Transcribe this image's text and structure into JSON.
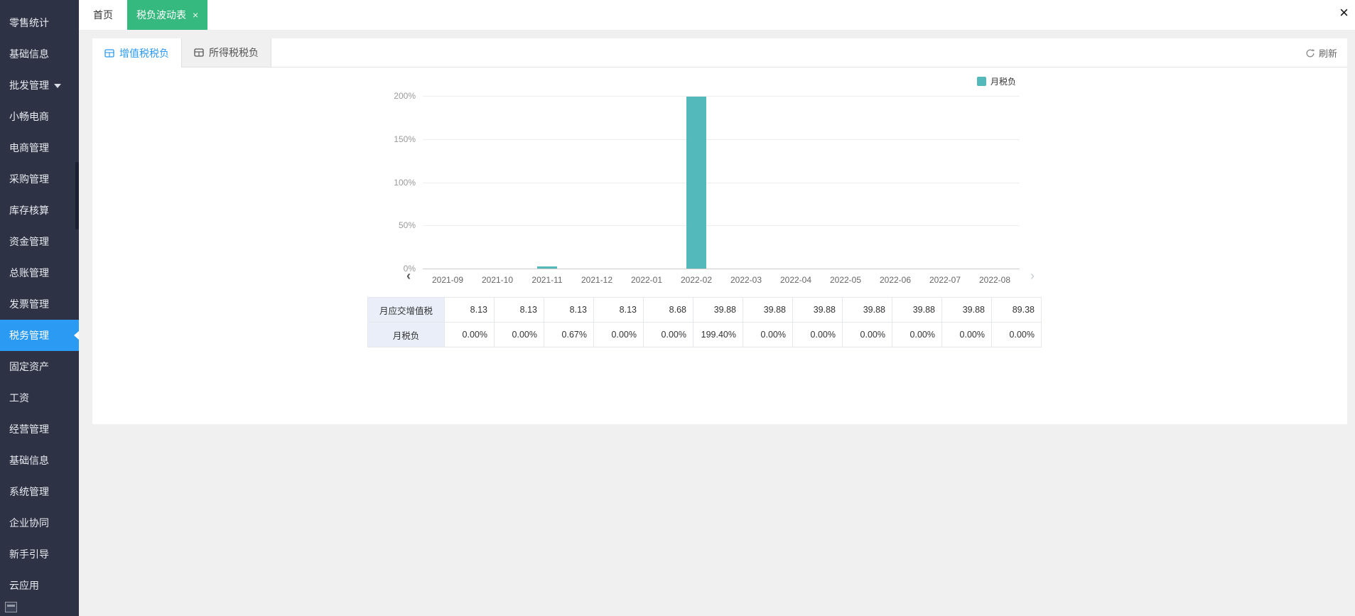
{
  "app": {
    "close_label": "×"
  },
  "colors": {
    "sidebar_bg": "#2d3344",
    "accent_blue": "#2b9af3",
    "tab_active_green": "#36b97e",
    "table_label_bg": "#e9eef8"
  },
  "sidebar": {
    "items": [
      {
        "label": "零售统计"
      },
      {
        "label": "基础信息"
      },
      {
        "label": "批发管理",
        "has_dropdown": true
      },
      {
        "label": "小畅电商"
      },
      {
        "label": "电商管理"
      },
      {
        "label": "采购管理"
      },
      {
        "label": "库存核算"
      },
      {
        "label": "资金管理"
      },
      {
        "label": "总账管理"
      },
      {
        "label": "发票管理"
      },
      {
        "label": "税务管理",
        "active": true
      },
      {
        "label": "固定资产"
      },
      {
        "label": "工资"
      },
      {
        "label": "经营管理"
      },
      {
        "label": "基础信息"
      },
      {
        "label": "系统管理"
      },
      {
        "label": "企业协同"
      },
      {
        "label": "新手引导"
      },
      {
        "label": "云应用"
      }
    ]
  },
  "tabbar": {
    "home_tab": "首页",
    "active_tab": "税负波动表",
    "close": "×"
  },
  "content": {
    "tabs": [
      {
        "label": "增值税税负",
        "active": true
      },
      {
        "label": "所得税税负",
        "active": false
      }
    ],
    "refresh_label": "刷新"
  },
  "chart_data": {
    "type": "bar",
    "title": "",
    "xlabel": "",
    "ylabel": "",
    "categories": [
      "2021-09",
      "2021-10",
      "2021-11",
      "2021-12",
      "2022-01",
      "2022-02",
      "2022-03",
      "2022-04",
      "2022-05",
      "2022-06",
      "2022-07",
      "2022-08"
    ],
    "series": [
      {
        "name": "月税负",
        "values": [
          0.0,
          0.0,
          0.67,
          0.0,
          0.0,
          199.4,
          0.0,
          0.0,
          0.0,
          0.0,
          0.0,
          0.0
        ]
      }
    ],
    "y_ticks": [
      "0%",
      "50%",
      "100%",
      "150%",
      "200%"
    ],
    "ylim": [
      0,
      200
    ],
    "bar_color": "#54b9ba",
    "legend": [
      "月税负"
    ],
    "legend_position": "top-right",
    "grid": true
  },
  "table": {
    "rows": [
      {
        "label": "月应交增值税",
        "values": [
          "8.13",
          "8.13",
          "8.13",
          "8.13",
          "8.68",
          "39.88",
          "39.88",
          "39.88",
          "39.88",
          "39.88",
          "39.88",
          "89.38"
        ]
      },
      {
        "label": "月税负",
        "values": [
          "0.00%",
          "0.00%",
          "0.67%",
          "0.00%",
          "0.00%",
          "199.40%",
          "0.00%",
          "0.00%",
          "0.00%",
          "0.00%",
          "0.00%",
          "0.00%"
        ]
      }
    ]
  }
}
